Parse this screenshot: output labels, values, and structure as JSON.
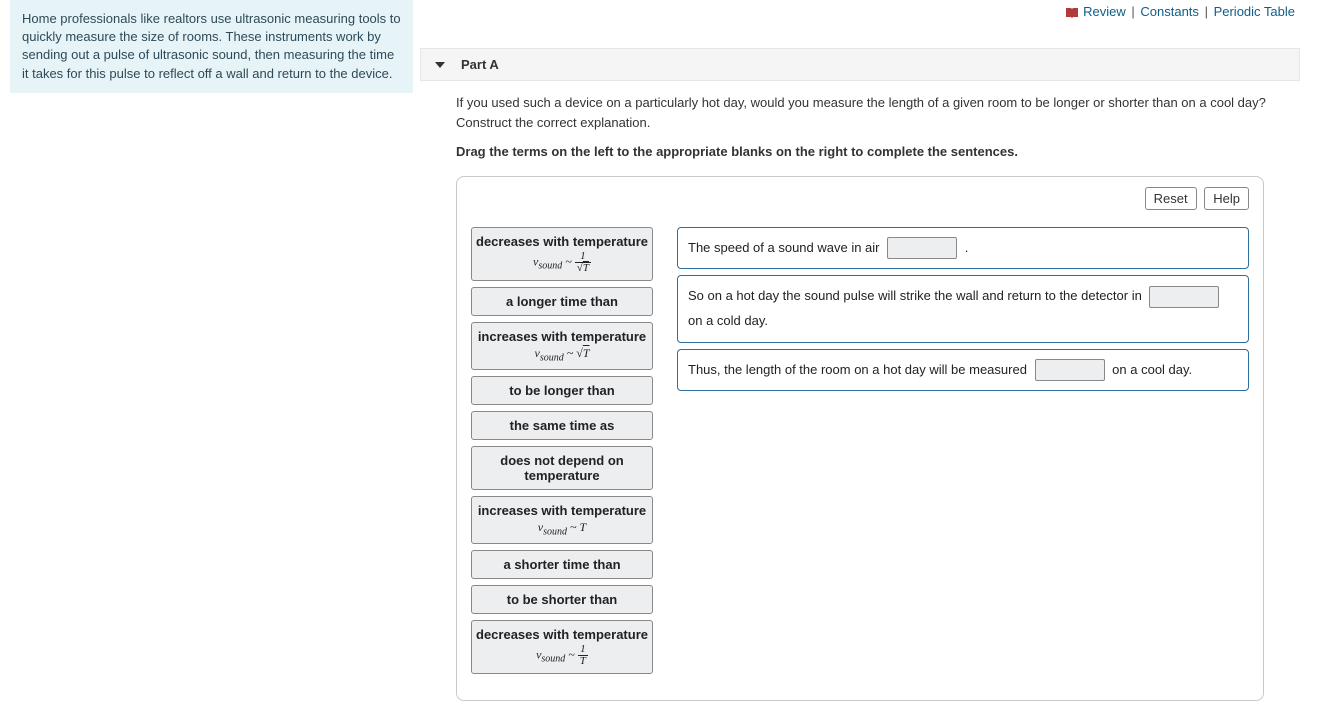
{
  "header": {
    "links": {
      "review": "Review",
      "constants": "Constants",
      "periodic": "Periodic Table"
    }
  },
  "intro": "Home professionals like realtors use ultrasonic measuring tools to quickly measure the size of rooms. These instruments work by sending out a pulse of ultrasonic sound, then measuring the time it takes for this pulse to reflect off a wall and return to the device.",
  "part": {
    "label": "Part A",
    "question": "If you used such a device on a particularly hot day, would you measure the length of a given room to be longer or shorter than on a cool day? Construct the correct explanation.",
    "instruction": "Drag the terms on the left to the appropriate blanks on the right to complete the sentences."
  },
  "buttons": {
    "reset": "Reset",
    "help": "Help"
  },
  "terms": [
    {
      "text": "decreases with temperature",
      "formula_type": "inv_sqrt_T"
    },
    {
      "text": "a longer time than",
      "formula_type": ""
    },
    {
      "text": "increases with temperature",
      "formula_type": "sqrt_T"
    },
    {
      "text": "to be longer than",
      "formula_type": ""
    },
    {
      "text": "the same time as",
      "formula_type": ""
    },
    {
      "text": "does not depend on temperature",
      "formula_type": ""
    },
    {
      "text": "increases with temperature",
      "formula_type": "T"
    },
    {
      "text": "a shorter time than",
      "formula_type": ""
    },
    {
      "text": "to be shorter than",
      "formula_type": ""
    },
    {
      "text": "decreases with temperature",
      "formula_type": "inv_T"
    }
  ],
  "sentences": {
    "s1_pre": "The speed of a sound wave in air",
    "s1_post": ".",
    "s2_pre": "So on a hot day the sound pulse will strike the wall and return to the detector in",
    "s2_post": "on a cold day.",
    "s3_pre": "Thus, the length of the room on a hot day will be measured",
    "s3_post": "on a cool day."
  },
  "colors": {
    "panel_bg": "#e6f3f7",
    "link": "#0d5f8a",
    "sentence_border": "#2e6e9e",
    "term_bg": "#eceef0",
    "border_gray": "#888888"
  }
}
